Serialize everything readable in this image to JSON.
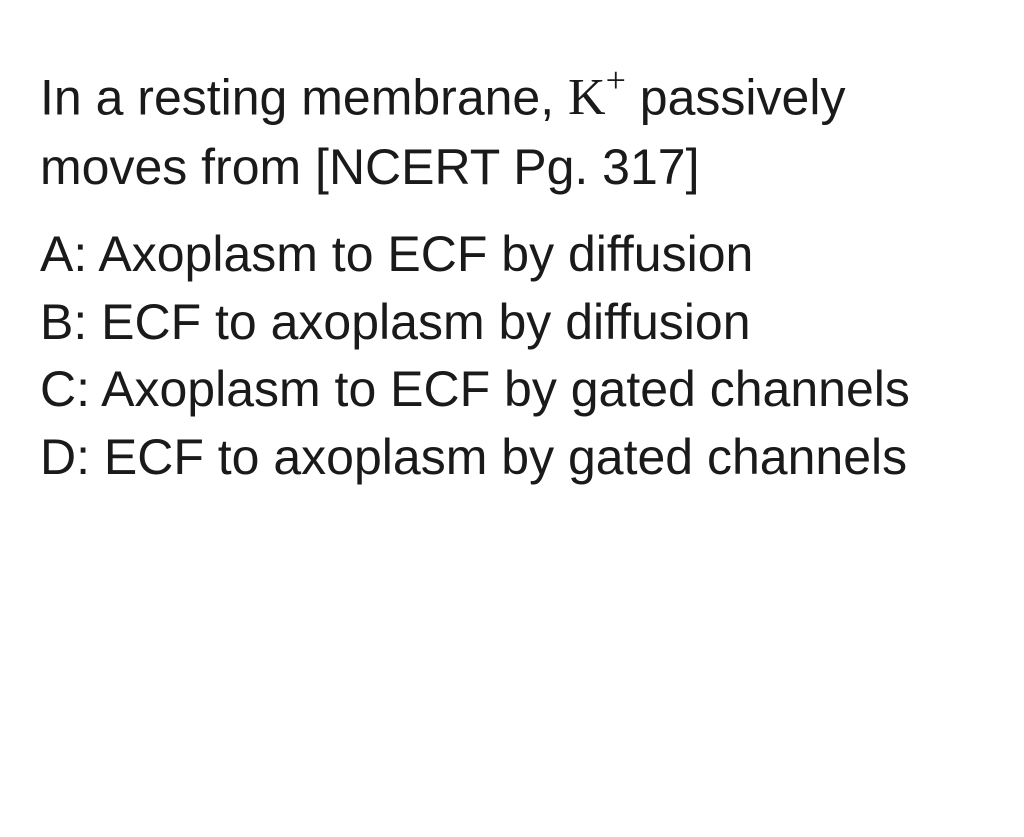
{
  "question": {
    "stem_prefix": "In a resting membrane, ",
    "ion_symbol": "K",
    "ion_charge": "+",
    "stem_middle": " passively moves from [NCERT Pg. 317]"
  },
  "options": {
    "a": "A: Axoplasm to ECF by diffusion",
    "b": "B: ECF to axoplasm by diffusion",
    "c": "C: Axoplasm to ECF by gated channels",
    "d": "D: ECF to axoplasm by gated channels"
  },
  "styling": {
    "background_color": "#ffffff",
    "text_color": "#1a1a1a",
    "body_fontsize": 50,
    "ion_fontfamily": "Times New Roman",
    "line_height": 1.35
  }
}
